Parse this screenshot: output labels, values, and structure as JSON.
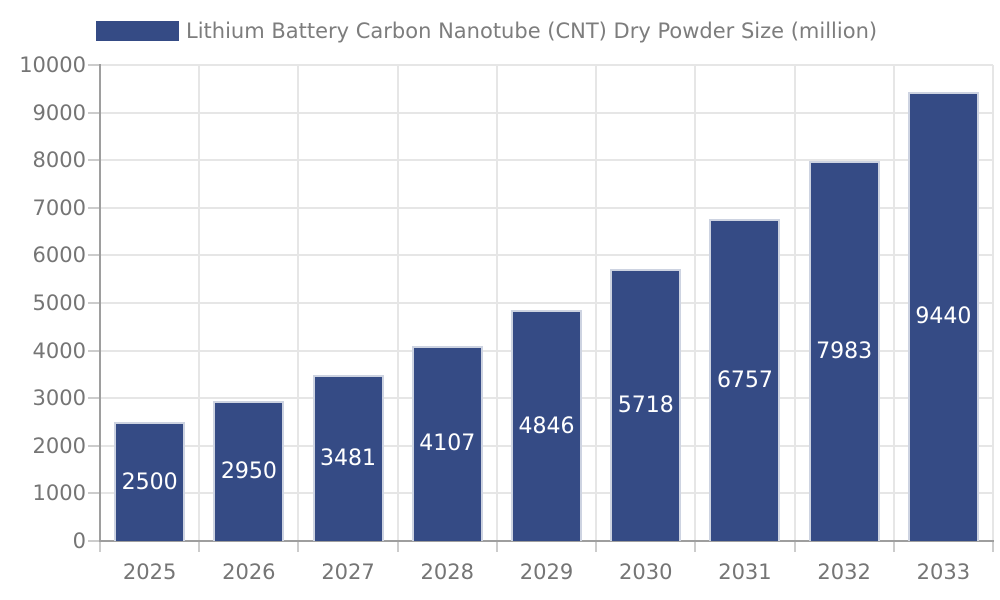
{
  "chart_data": {
    "type": "bar",
    "title": "Lithium Battery Carbon Nanotube (CNT) Dry Powder Size (million)",
    "categories": [
      "2025",
      "2026",
      "2027",
      "2028",
      "2029",
      "2030",
      "2031",
      "2032",
      "2033"
    ],
    "values": [
      2500,
      2950,
      3481,
      4107,
      4846,
      5718,
      6757,
      7983,
      9440
    ],
    "value_labels": [
      "2500",
      "2950",
      "3481",
      "4107",
      "4846",
      "5718",
      "6757",
      "7983",
      "9440"
    ],
    "xlabel": "",
    "ylabel": "",
    "ylim": [
      0,
      10000
    ],
    "yticks": [
      0,
      1000,
      2000,
      3000,
      4000,
      5000,
      6000,
      7000,
      8000,
      9000,
      10000
    ],
    "grid": true,
    "legend_position": "top-left",
    "colors": {
      "background": "#ffffff",
      "bar_fill": "#354b85",
      "bar_border": "#cdd3e1",
      "grid": "#e6e6e6",
      "axis": "#9e9e9e",
      "tick": "#cccccc",
      "text": "#757575",
      "legend_text": "#7d7d7d",
      "value_text": "#ffffff"
    }
  }
}
